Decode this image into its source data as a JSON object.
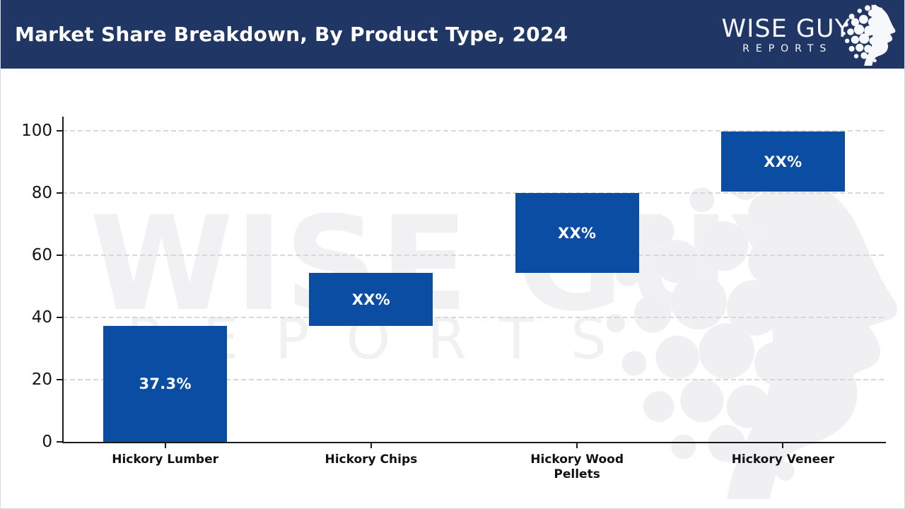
{
  "header": {
    "title": "Market Share Breakdown, By Product Type, 2024",
    "brand": {
      "line1": "WISE GUY",
      "line2": "REPORTS"
    }
  },
  "watermark": {
    "line1": "WISE GUY",
    "line2": "REPORTS"
  },
  "colors": {
    "header_navy": "#203664",
    "bar_blue": "#0b4da2",
    "bar_label_white": "#ffffff",
    "watermark_gray": "#f1f1f3",
    "grid_gray": "#d8d8d8",
    "axis_black": "#1a1a1a"
  },
  "chart_data": {
    "type": "bar",
    "subtype": "waterfall",
    "title": "Market Share Breakdown, By Product Type, 2024",
    "categories": [
      "Hickory Lumber",
      "Hickory Chips",
      "Hickory Wood Pellets",
      "Hickory Veneer"
    ],
    "segments": [
      {
        "category": "Hickory Lumber",
        "start": 0,
        "end": 37.3,
        "label": "37.3%"
      },
      {
        "category": "Hickory Chips",
        "start": 37.2,
        "end": 54.3,
        "label": "XX%"
      },
      {
        "category": "Hickory Wood Pellets",
        "start": 54.4,
        "end": 79.9,
        "label": "XX%"
      },
      {
        "category": "Hickory Veneer",
        "start": 80.4,
        "end": 99.8,
        "label": "XX%"
      }
    ],
    "xlabel": "",
    "ylabel": "",
    "ylim": [
      0,
      105
    ],
    "yticks": [
      0,
      20,
      40,
      60,
      80,
      100
    ],
    "grid": true,
    "grid_style": "dashed",
    "legend": false
  }
}
